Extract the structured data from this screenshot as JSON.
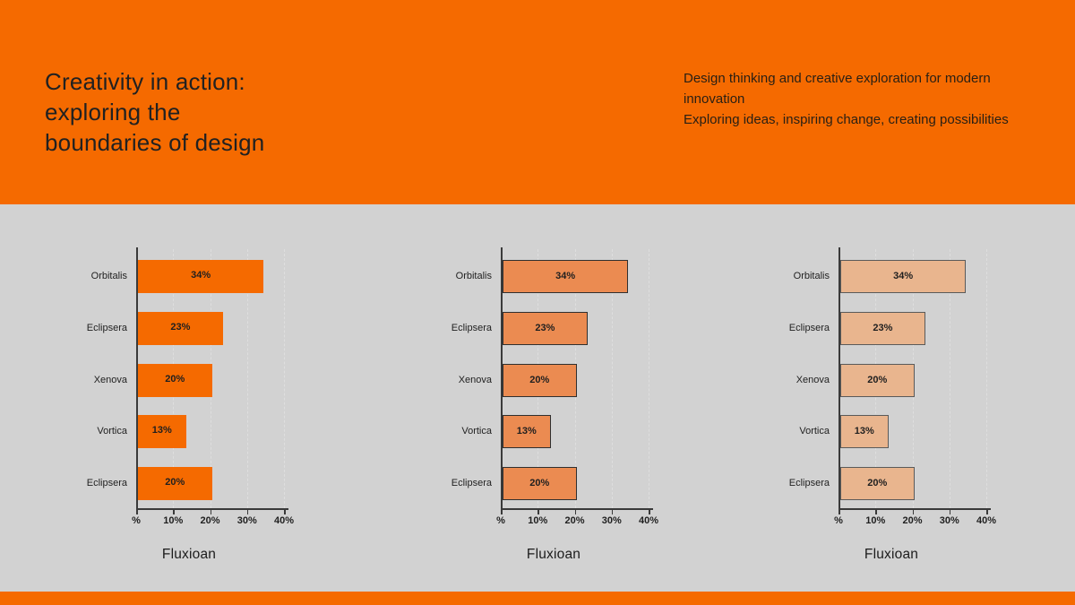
{
  "theme": {
    "accent_orange": "#f56a00",
    "background_gray": "#d2d2d2",
    "text_dark": "#1f1f1f",
    "axis_color": "#3a3a3a",
    "gridline_color": "#dedede"
  },
  "header": {
    "title": "Creativity in action:\nexploring the\nboundaries of design",
    "subtitle_line1": "Design thinking and creative exploration for modern innovation",
    "subtitle_line2": "Exploring ideas, inspiring change, creating possibilities"
  },
  "chart_data": [
    {
      "type": "bar",
      "orientation": "horizontal",
      "title": "Fluxioan",
      "categories": [
        "Orbitalis",
        "Eclipsera",
        "Xenova",
        "Vortica",
        "Eclipsera"
      ],
      "values": [
        34,
        23,
        20,
        13,
        20
      ],
      "value_labels": [
        "34%",
        "23%",
        "20%",
        "13%",
        "20%"
      ],
      "x_ticks": [
        "%",
        "10%",
        "20%",
        "30%",
        "40%"
      ],
      "xlim": [
        0,
        40
      ],
      "grid": true,
      "legend": "none",
      "bar_fill": "#f56a00",
      "bar_border": "none"
    },
    {
      "type": "bar",
      "orientation": "horizontal",
      "title": "Fluxioan",
      "categories": [
        "Orbitalis",
        "Eclipsera",
        "Xenova",
        "Vortica",
        "Eclipsera"
      ],
      "values": [
        34,
        23,
        20,
        13,
        20
      ],
      "value_labels": [
        "34%",
        "23%",
        "20%",
        "13%",
        "20%"
      ],
      "x_ticks": [
        "%",
        "10%",
        "20%",
        "30%",
        "40%"
      ],
      "xlim": [
        0,
        40
      ],
      "grid": true,
      "legend": "none",
      "bar_fill": "#eb8b51",
      "bar_border": "#2f2f2f"
    },
    {
      "type": "bar",
      "orientation": "horizontal",
      "title": "Fluxioan",
      "categories": [
        "Orbitalis",
        "Eclipsera",
        "Xenova",
        "Vortica",
        "Eclipsera"
      ],
      "values": [
        34,
        23,
        20,
        13,
        20
      ],
      "value_labels": [
        "34%",
        "23%",
        "20%",
        "13%",
        "20%"
      ],
      "x_ticks": [
        "%",
        "10%",
        "20%",
        "30%",
        "40%"
      ],
      "xlim": [
        0,
        40
      ],
      "grid": true,
      "legend": "none",
      "bar_fill": "#e9b58e",
      "bar_border": "#5a5a5a"
    }
  ]
}
